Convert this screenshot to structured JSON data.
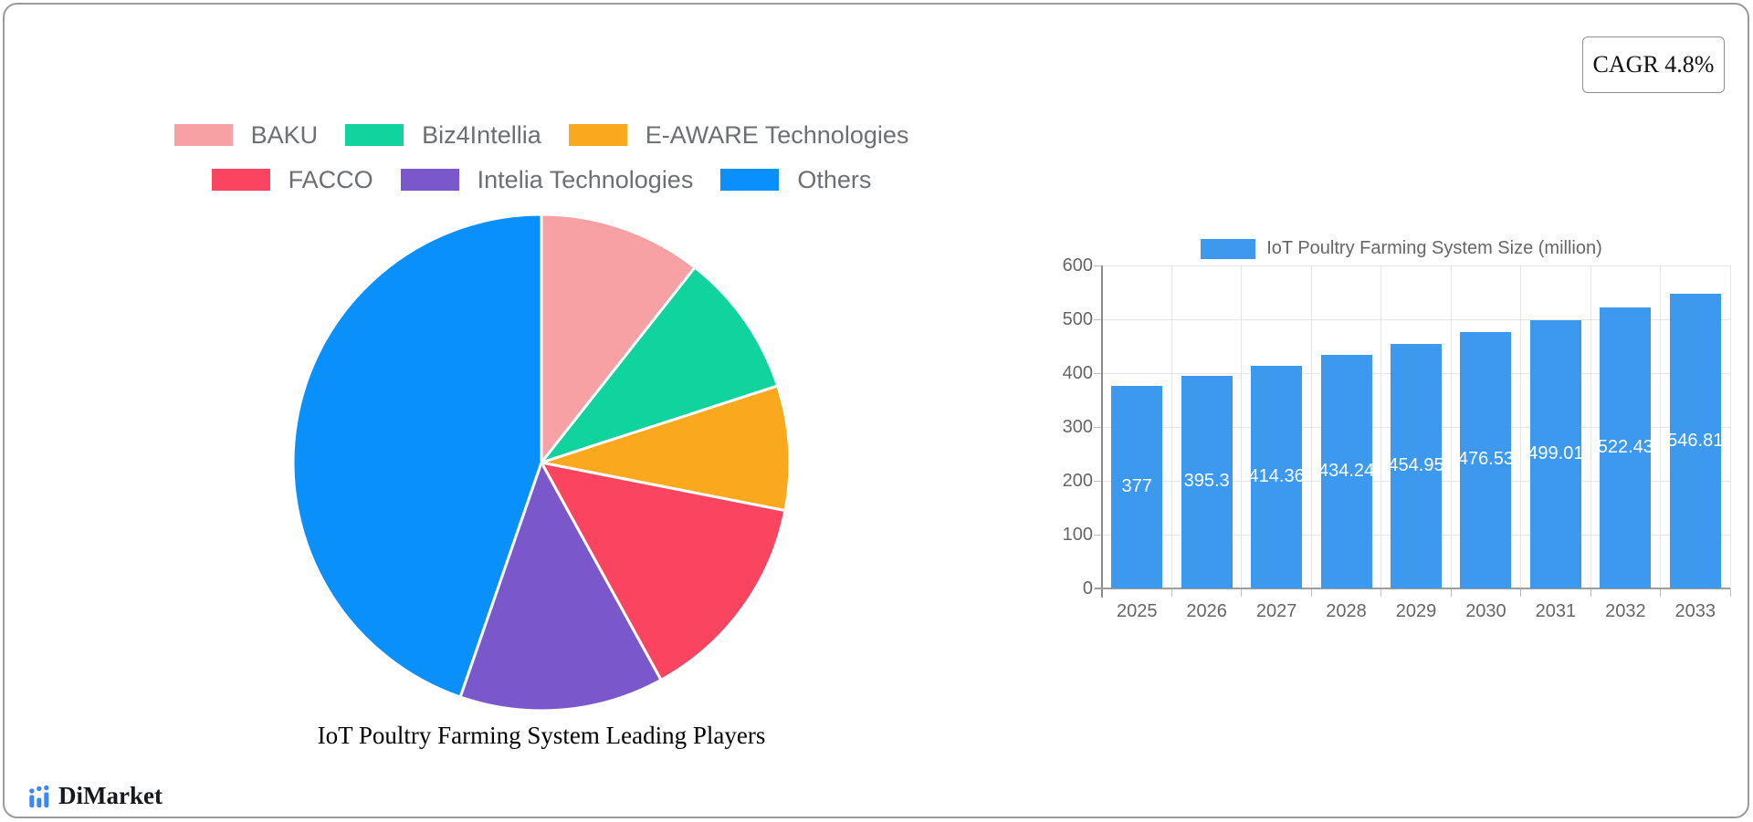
{
  "cagr_badge": "CAGR 4.8%",
  "brand": {
    "name": "DiMarket",
    "icon": "mini-bar-chart-icon",
    "icon_color": "#3e86f0"
  },
  "pie_title": "IoT Poultry Farming System Leading Players",
  "colors": {
    "pie_blue": "#0990fa",
    "bar_blue": "#3d99ed",
    "legend_text": "#6c6f74",
    "axis_text": "#666666",
    "grid": "#e6e6e6"
  },
  "chart_data": [
    {
      "type": "pie",
      "title": "IoT Poultry Farming System Leading Players",
      "legend_position": "top",
      "legend_rows": [
        [
          0,
          1,
          2
        ],
        [
          3,
          4,
          5
        ]
      ],
      "start_angle_deg": 0,
      "direction": "clockwise",
      "series": [
        {
          "name": "BAKU",
          "value": 10.6,
          "color": "#f8a1a5"
        },
        {
          "name": "Biz4Intellia",
          "value": 9.4,
          "color": "#10d39e"
        },
        {
          "name": "E-AWARE Technologies",
          "value": 8.1,
          "color": "#faa91e"
        },
        {
          "name": "FACCO",
          "value": 13.9,
          "color": "#fb4560"
        },
        {
          "name": "Intelia Technologies",
          "value": 13.3,
          "color": "#7a58cc"
        },
        {
          "name": "Others",
          "value": 44.7,
          "color": "#0990fa"
        }
      ]
    },
    {
      "type": "bar",
      "legend": "IoT Poultry Farming System Size (million)",
      "categories": [
        "2025",
        "2026",
        "2027",
        "2028",
        "2029",
        "2030",
        "2031",
        "2032",
        "2033"
      ],
      "values": [
        377,
        395.3,
        414.36,
        434.24,
        454.95,
        476.53,
        499.01,
        522.43,
        546.81
      ],
      "bar_labels": [
        "377",
        "395.3",
        "414.36",
        "434.24",
        "454.95",
        "476.53",
        "499.01",
        "522.43",
        "546.81"
      ],
      "ylim": [
        0,
        600
      ],
      "yticks": [
        0,
        100,
        200,
        300,
        400,
        500,
        600
      ],
      "grid": true,
      "legend_position": "top",
      "bar_color": "#3d99ed",
      "value_label_color": "#ffffff"
    }
  ]
}
